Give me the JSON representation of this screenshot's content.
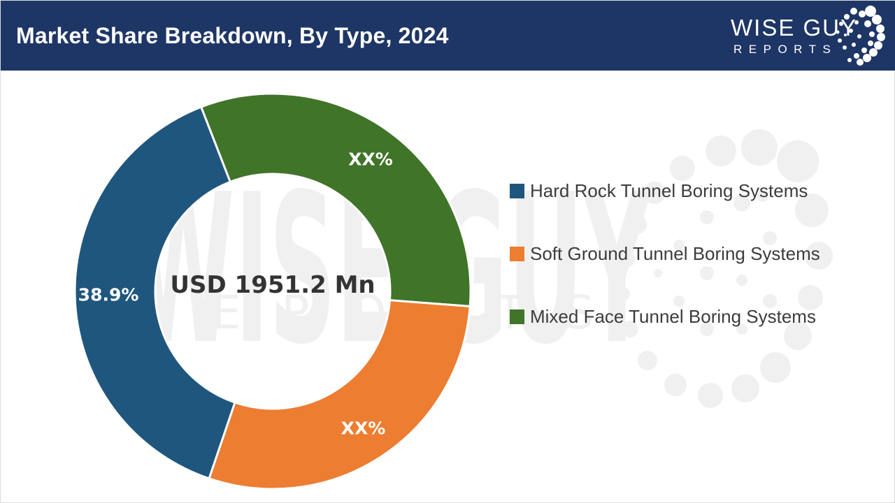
{
  "header": {
    "title": "Market Share Breakdown, By Type, 2024",
    "logo_line1": "WISE GUY",
    "logo_line2": "REPORTS"
  },
  "watermark": {
    "line1": "WISE GUY",
    "line2": "REPORTS"
  },
  "chart_data": {
    "type": "pie",
    "subtype": "donut",
    "title": "Market Share Breakdown, By Type, 2024",
    "center_label": "USD 1951.2 Mn",
    "start_angle_deg": -21.2,
    "outer_radius_px": 283,
    "inner_radius_px": 168,
    "label_radius_px": 235,
    "segments": [
      {
        "name": "Mixed Face Tunnel Boring Systems",
        "label": "XX%",
        "value_pct": 32.1,
        "color": "#407428"
      },
      {
        "name": "Soft Ground Tunnel Boring Systems",
        "label": "XX%",
        "value_pct": 29.0,
        "color": "#ED7D31"
      },
      {
        "name": "Hard Rock Tunnel Boring Systems",
        "label": "38.9%",
        "value_pct": 38.9,
        "color": "#1F567E"
      }
    ],
    "legend": [
      {
        "label": "Hard Rock Tunnel Boring Systems",
        "color": "#1F567E"
      },
      {
        "label": "Soft Ground Tunnel Boring Systems",
        "color": "#ED7D31"
      },
      {
        "label": "Mixed Face Tunnel Boring Systems",
        "color": "#407428"
      }
    ],
    "colors": {
      "header_bg": "#1E3666",
      "center_text": "#333333",
      "legend_text": "#3C3C3C",
      "slice_label": "#FFFFFF",
      "watermark": "#F0F0F0"
    }
  }
}
